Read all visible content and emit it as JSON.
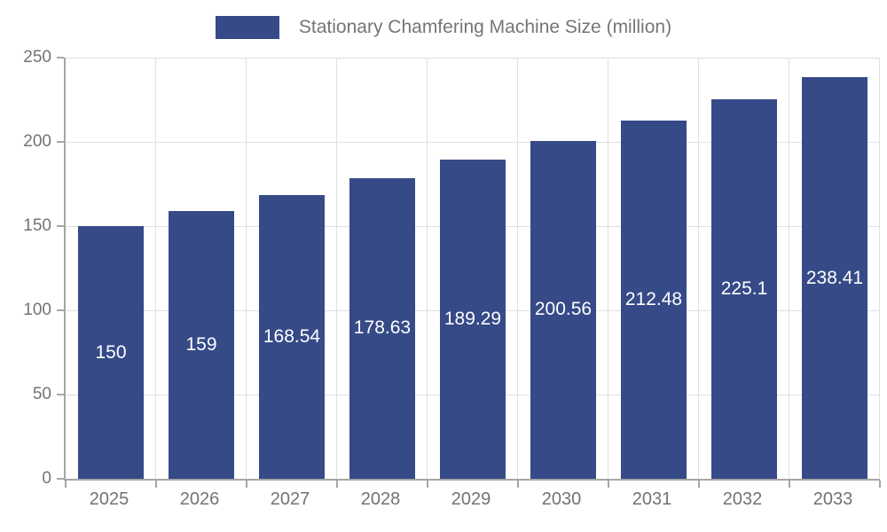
{
  "chart_data": {
    "type": "bar",
    "title": "Stationary Chamfering Machine Size (million)",
    "categories": [
      "2025",
      "2026",
      "2027",
      "2028",
      "2029",
      "2030",
      "2031",
      "2032",
      "2033"
    ],
    "values": [
      150,
      159,
      168.54,
      178.63,
      189.29,
      200.56,
      212.48,
      225.1,
      238.41
    ],
    "value_labels": [
      "150",
      "159",
      "168.54",
      "178.63",
      "189.29",
      "200.56",
      "212.48",
      "225.1",
      "238.41"
    ],
    "xlabel": "",
    "ylabel": "",
    "ylim": [
      0,
      250
    ],
    "yticks": [
      0,
      50,
      100,
      150,
      200,
      250
    ],
    "grid": true,
    "legend_position": "top",
    "colors": {
      "bar": "#354a87",
      "bar_label": "#ffffff",
      "grid_line": "#e0e0e0",
      "axis_line": "#a6a6a6",
      "tick_text": "#737373",
      "legend_text": "#757575",
      "background": "#ffffff"
    }
  }
}
